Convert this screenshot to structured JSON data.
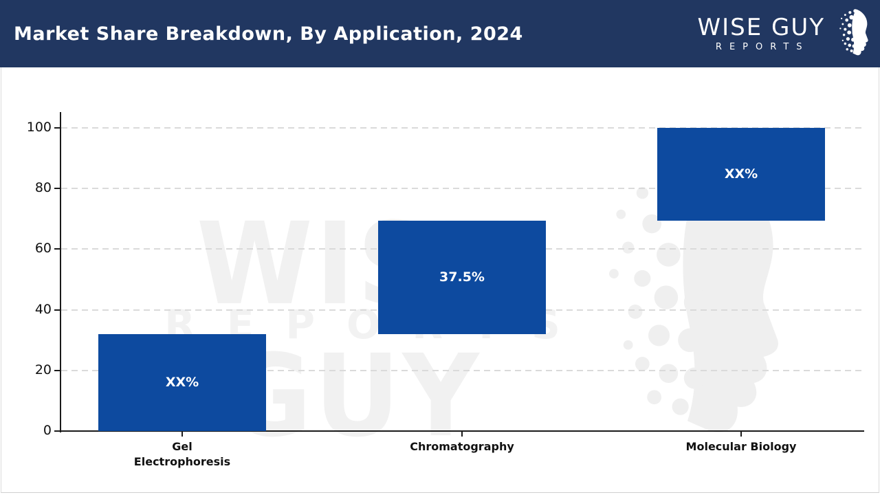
{
  "header": {
    "title": "Market Share Breakdown, By Application, 2024",
    "logo": {
      "line1": "WISE GUY",
      "line2": "REPORTS"
    },
    "bg_color": "#213761"
  },
  "watermark": {
    "line1": "WISE GUY",
    "line2": "REPORTS"
  },
  "chart_data": {
    "type": "bar",
    "subtype": "floating-waterfall",
    "title": "Market Share Breakdown, By Application, 2024",
    "categories": [
      "Gel Electrophoresis",
      "Chromatography",
      "Molecular Biology"
    ],
    "category_lines": [
      [
        "Gel",
        "Electrophoresis"
      ],
      [
        "Chromatography"
      ],
      [
        "Molecular Biology"
      ]
    ],
    "segments": [
      {
        "category": "Gel Electrophoresis",
        "start": 0,
        "end": 32,
        "label": "XX%"
      },
      {
        "category": "Chromatography",
        "start": 32,
        "end": 69.5,
        "label": "37.5%"
      },
      {
        "category": "Molecular Biology",
        "start": 69.5,
        "end": 100,
        "label": "XX%"
      }
    ],
    "y_ticks": [
      0,
      20,
      40,
      60,
      80,
      100
    ],
    "ylim": [
      0,
      100
    ],
    "xlabel": "",
    "ylabel": "",
    "grid": "dashed-horizontal",
    "legend": "none",
    "bar_color": "#0D4A9F",
    "bar_label_color": "#FFFFFF",
    "axis_color": "#1A1A1A",
    "grid_color": "#DADADA",
    "watermark_color": "#F1F1F1"
  }
}
